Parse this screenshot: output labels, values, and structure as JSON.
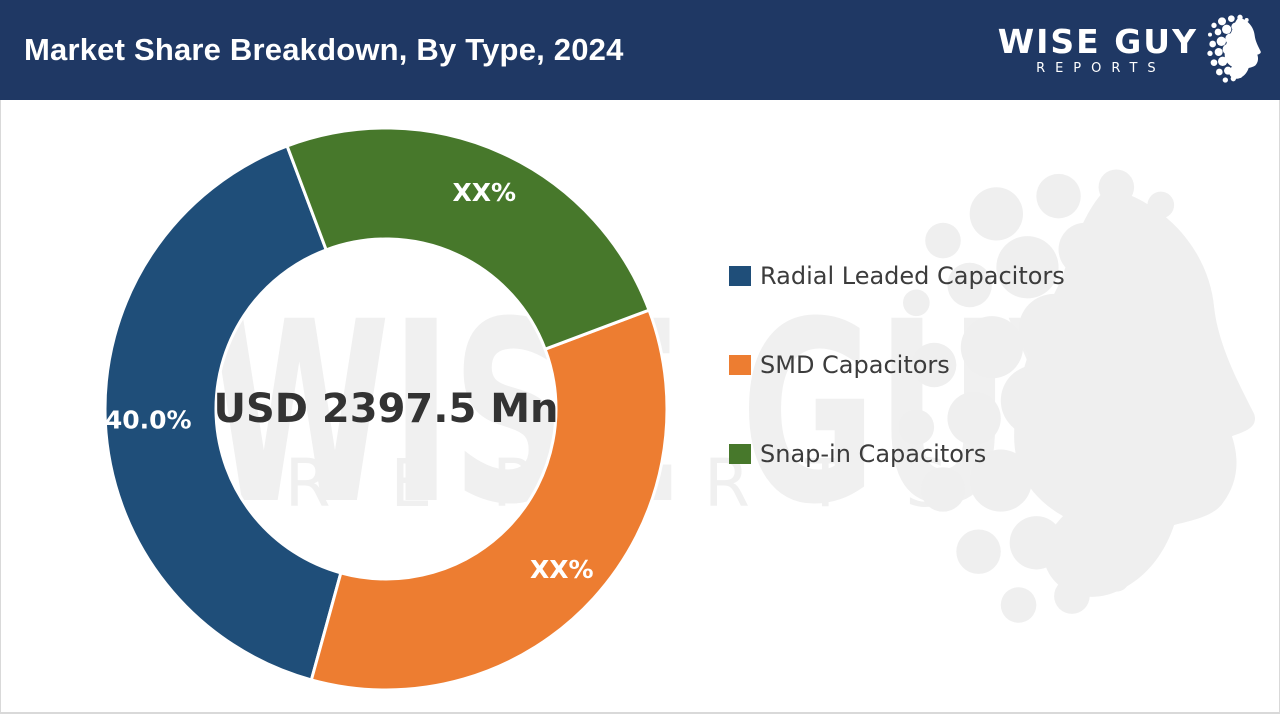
{
  "header": {
    "title": "Market Share Breakdown, By Type, 2024",
    "bg_color": "#1F3864",
    "logo": {
      "line1": "WISE GUY",
      "line2": "REPORTS"
    }
  },
  "watermark": {
    "line1": "WISE GUY",
    "line2": "REPORTS"
  },
  "chart_data": {
    "type": "pie",
    "subtype": "donut",
    "title": "Market Share Breakdown, By Type, 2024",
    "center_label": "USD 2397.5 Mn",
    "start_angle_deg": 110.6,
    "direction": "counterclockwise",
    "legend_position": "right",
    "slices": [
      {
        "label": "Radial Leaded Capacitors",
        "value_pct": 40,
        "display_label": "40.0%",
        "color": "#1F4E79"
      },
      {
        "label": "SMD Capacitors",
        "value_pct": 35,
        "display_label": "XX%",
        "color": "#ED7D31"
      },
      {
        "label": "Snap-in Capacitors",
        "value_pct": 25,
        "display_label": "XX%",
        "color": "#47782B"
      }
    ]
  }
}
